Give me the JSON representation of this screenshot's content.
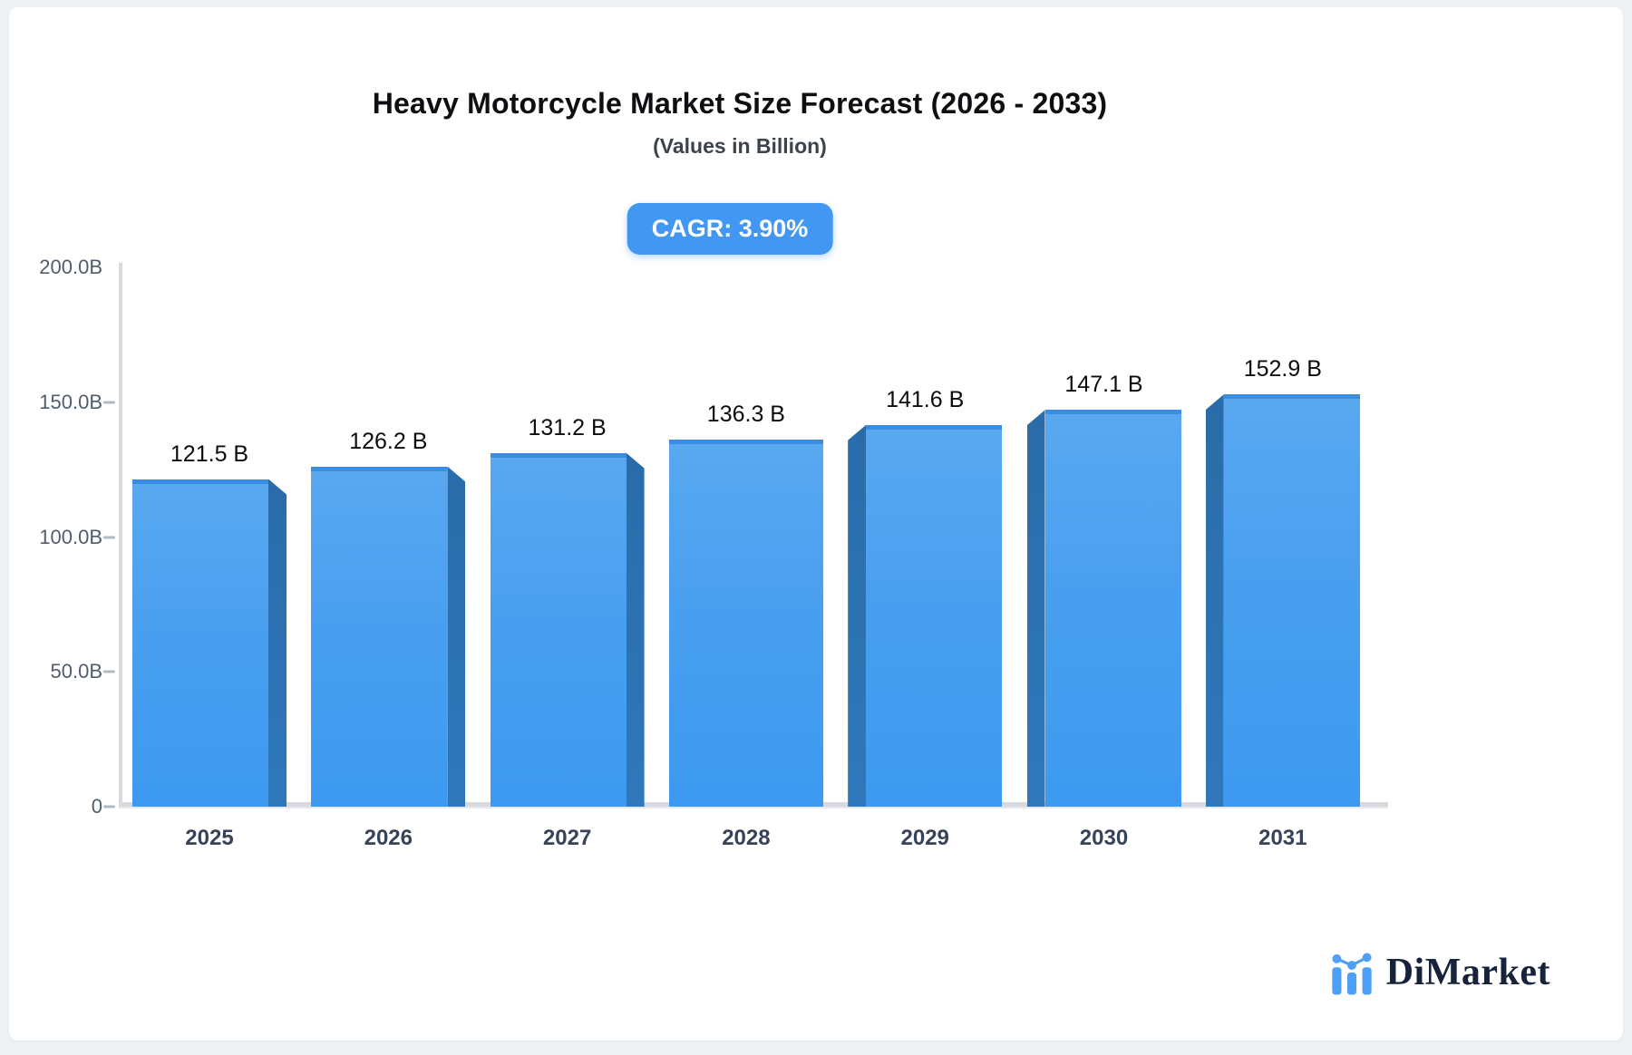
{
  "header": {
    "title": "Heavy Motorcycle Market Size Forecast (2026 - 2033)",
    "subtitle": "(Values in Billion)"
  },
  "badge": {
    "label": "CAGR: 3.90%",
    "background_color": "#4197f2",
    "text_color": "#ffffff"
  },
  "chart_data": {
    "type": "bar",
    "title": "Heavy Motorcycle Market Size Forecast (2026 - 2033)",
    "subtitle": "(Values in Billion)",
    "categories": [
      "2025",
      "2026",
      "2027",
      "2028",
      "2029",
      "2030",
      "2031"
    ],
    "values": [
      121.5,
      126.2,
      131.2,
      136.3,
      141.6,
      147.1,
      152.9
    ],
    "value_labels": [
      "121.5 B",
      "126.2 B",
      "131.2 B",
      "136.3 B",
      "141.6 B",
      "147.1 B",
      "152.9 B"
    ],
    "xlabel": "",
    "ylabel": "",
    "ylim": [
      0,
      200
    ],
    "y_ticks": [
      {
        "value": 200,
        "label": "200.0B"
      },
      {
        "value": 150,
        "label": "150.0B"
      },
      {
        "value": 100,
        "label": "100.0B"
      },
      {
        "value": 50,
        "label": "50.0B"
      },
      {
        "value": 0,
        "label": "0"
      }
    ],
    "grid": false,
    "legend_position": "none",
    "bar_style": "3d-perspective-center-vanishing",
    "bar_color": "#459CEF",
    "bar_side_color": "#2E74B5",
    "cagr_annotation": "CAGR: 3.90%"
  },
  "logo": {
    "text": "DiMarket",
    "icon": "bar-chart-logo-icon",
    "icon_color": "#4da0f5",
    "text_color": "#16233a"
  },
  "colors": {
    "background": "#ffffff",
    "page_background": "#eef1f4",
    "axis_line": "#d7dbdf",
    "y_label": "#515d6b",
    "x_label": "#36435a",
    "value_label": "#0b0c0e",
    "title": "#0d0f12",
    "subtitle": "#3c434d"
  }
}
